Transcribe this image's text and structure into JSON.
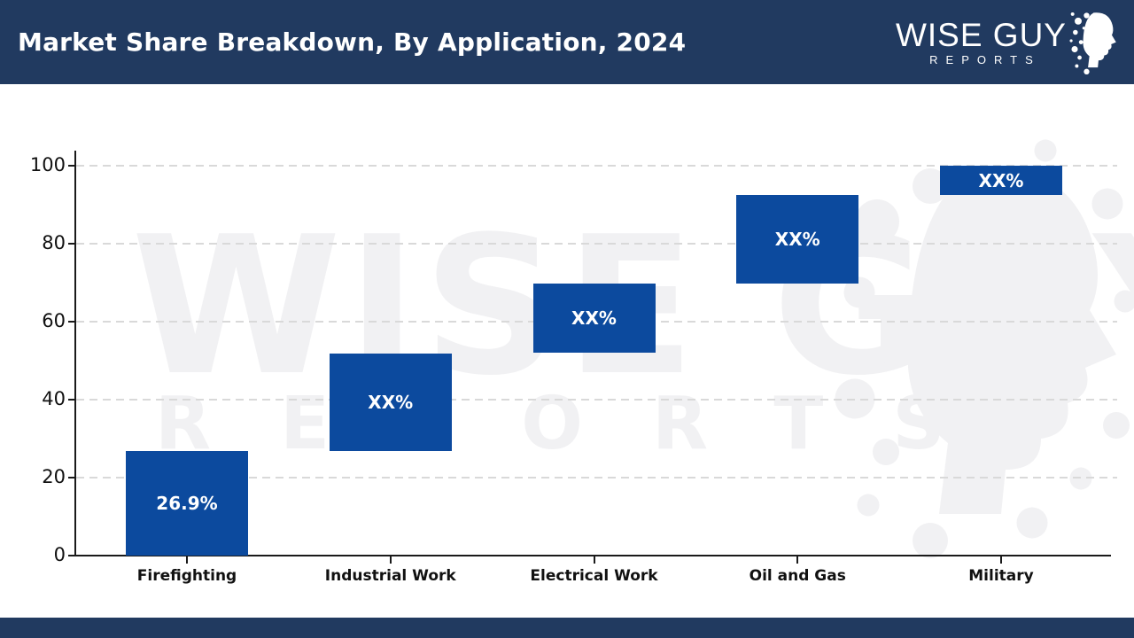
{
  "header": {
    "title": "Market Share Breakdown, By Application, 2024",
    "bg_color": "#213A60",
    "logo": {
      "line1": "WISE GUY",
      "line2": "REPORTS"
    }
  },
  "watermark": {
    "line1": "WISE GUY",
    "line2": "REPORTS"
  },
  "footer": {
    "bg_color": "#213A60"
  },
  "chart_data": {
    "type": "bar",
    "subtype": "waterfall-floating-bars",
    "title": "Market Share Breakdown, By Application, 2024",
    "categories": [
      "Firefighting",
      "Industrial Work",
      "Electrical Work",
      "Oil and Gas",
      "Military"
    ],
    "segments": [
      {
        "category": "Firefighting",
        "start": 0,
        "end": 26.9,
        "label": "26.9%"
      },
      {
        "category": "Industrial Work",
        "start": 26.9,
        "end": 51.8,
        "label": "XX%"
      },
      {
        "category": "Electrical Work",
        "start": 52.0,
        "end": 69.8,
        "label": "XX%"
      },
      {
        "category": "Oil and Gas",
        "start": 69.8,
        "end": 92.5,
        "label": "XX%"
      },
      {
        "category": "Military",
        "start": 92.5,
        "end": 100,
        "label": "XX%"
      }
    ],
    "xlabel": "",
    "ylabel": "",
    "ylim": [
      0,
      104
    ],
    "yticks": [
      0,
      20,
      40,
      60,
      80,
      100
    ],
    "grid": "horizontal-dashed",
    "legend": "none",
    "bar_color": "#0C4A9E",
    "bar_label_color": "#ffffff",
    "gridline_color": "#d9d9d9",
    "axis_color": "#1a1a1a"
  }
}
